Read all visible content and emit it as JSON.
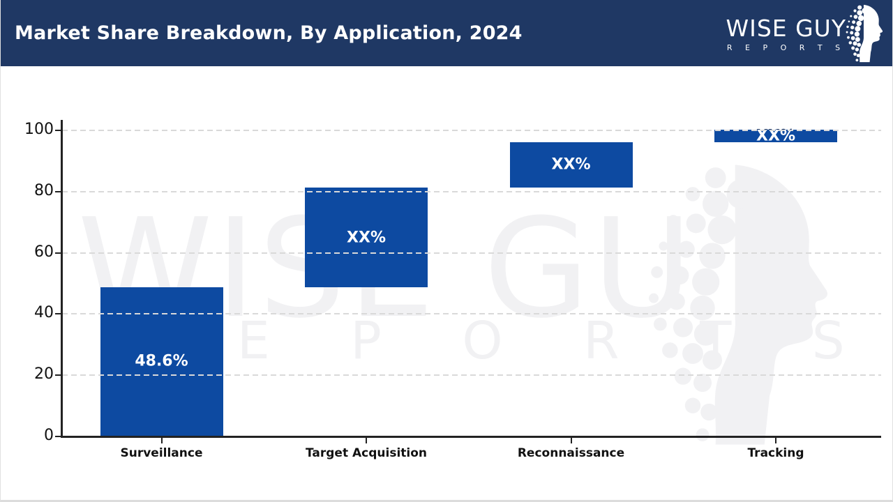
{
  "header": {
    "title": "Market Share Breakdown, By Application, 2024",
    "logo": {
      "line1": "WISE GUY",
      "line2": "R E P O R T S"
    }
  },
  "watermark": {
    "line1": "WISE GU",
    "line2": "R E P O R T S"
  },
  "chart_data": {
    "type": "bar",
    "subtype": "waterfall-cumulative",
    "title": "Market Share Breakdown, By Application, 2024",
    "categories": [
      "Surveillance",
      "Target Acquisition",
      "Reconnaissance",
      "Tracking"
    ],
    "segments": [
      {
        "category": "Surveillance",
        "start": 0,
        "end": 48.6,
        "value": 48.6,
        "label": "48.6%"
      },
      {
        "category": "Target Acquisition",
        "start": 48.6,
        "end": 81,
        "value": 32.4,
        "label": "XX%"
      },
      {
        "category": "Reconnaissance",
        "start": 81,
        "end": 96,
        "value": 15,
        "label": "XX%"
      },
      {
        "category": "Tracking",
        "start": 96,
        "end": 100,
        "value": 4,
        "label": "XX%"
      }
    ],
    "ylim": [
      0,
      100
    ],
    "yticks": [
      0,
      20,
      40,
      60,
      80,
      100
    ],
    "xlabel": "",
    "ylabel": "",
    "grid": "horizontal-dashed",
    "legend": "none"
  },
  "colors": {
    "header_bg": "#1f3864",
    "bar_fill": "#0d4aa1",
    "bar_label_inside": "#ffffff",
    "bar_label_outside": "#0f2c5f",
    "grid_line": "#d9d9d9",
    "axis_line": "#222222",
    "tick_label": "#111111",
    "watermark": "#f1f1f3",
    "page_bg": "#ffffff"
  }
}
